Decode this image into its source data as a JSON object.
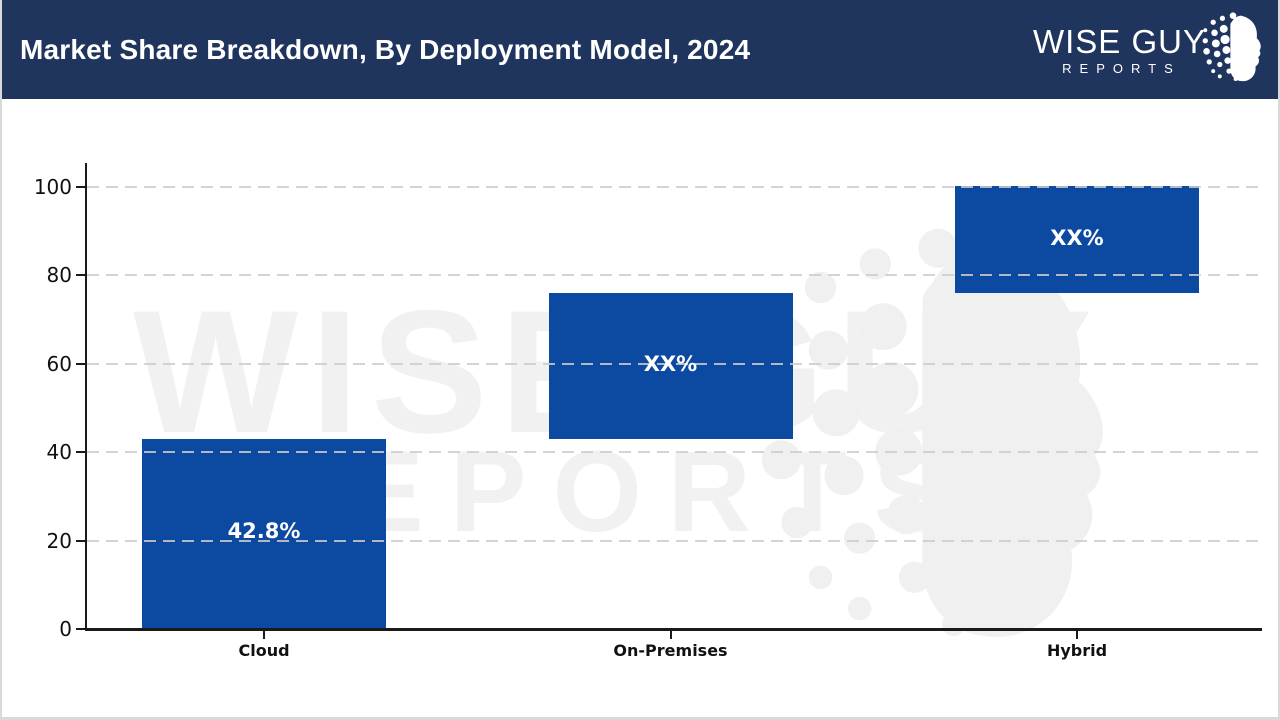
{
  "header": {
    "title": "Market Share Breakdown, By Deployment Model, 2024",
    "logo": {
      "line1": "WISE GUY",
      "line2": "REPORTS",
      "icon": "dotted-face-profile"
    }
  },
  "watermark": {
    "line1": "WISE GUY",
    "line2": "REPORTS",
    "icon": "dotted-face-profile"
  },
  "colors": {
    "header_bg": "#1f355e",
    "bar_fill": "#0b4aa0",
    "bar_label_text": "#ffffff",
    "gridline": "#d4d4d4",
    "axis": "#1a1a1a",
    "watermark_text": "#f1f1f1",
    "title_text": "#ffffff",
    "frame_border": "#d9d9d9"
  },
  "chart_data": {
    "type": "bar",
    "subtype": "waterfall",
    "title": "Market Share Breakdown, By Deployment Model, 2024",
    "xlabel": "",
    "ylabel": "",
    "categories": [
      "Cloud",
      "On-Premises",
      "Hybrid"
    ],
    "segments": [
      {
        "category": "Cloud",
        "start": 0,
        "end": 42.8,
        "label": "42.8%"
      },
      {
        "category": "On-Premises",
        "start": 42.8,
        "end": 75.7,
        "label": "XX%"
      },
      {
        "category": "Hybrid",
        "start": 75.7,
        "end": 100,
        "label": "XX%"
      }
    ],
    "values": [
      42.8,
      32.9,
      24.3
    ],
    "bar_labels": [
      "42.8%",
      "XX%",
      "XX%"
    ],
    "ylim": [
      0,
      100
    ],
    "yticks": [
      0,
      20,
      40,
      60,
      80,
      100
    ],
    "grid": "horizontal-dashed-over-bars",
    "legend": "none"
  }
}
